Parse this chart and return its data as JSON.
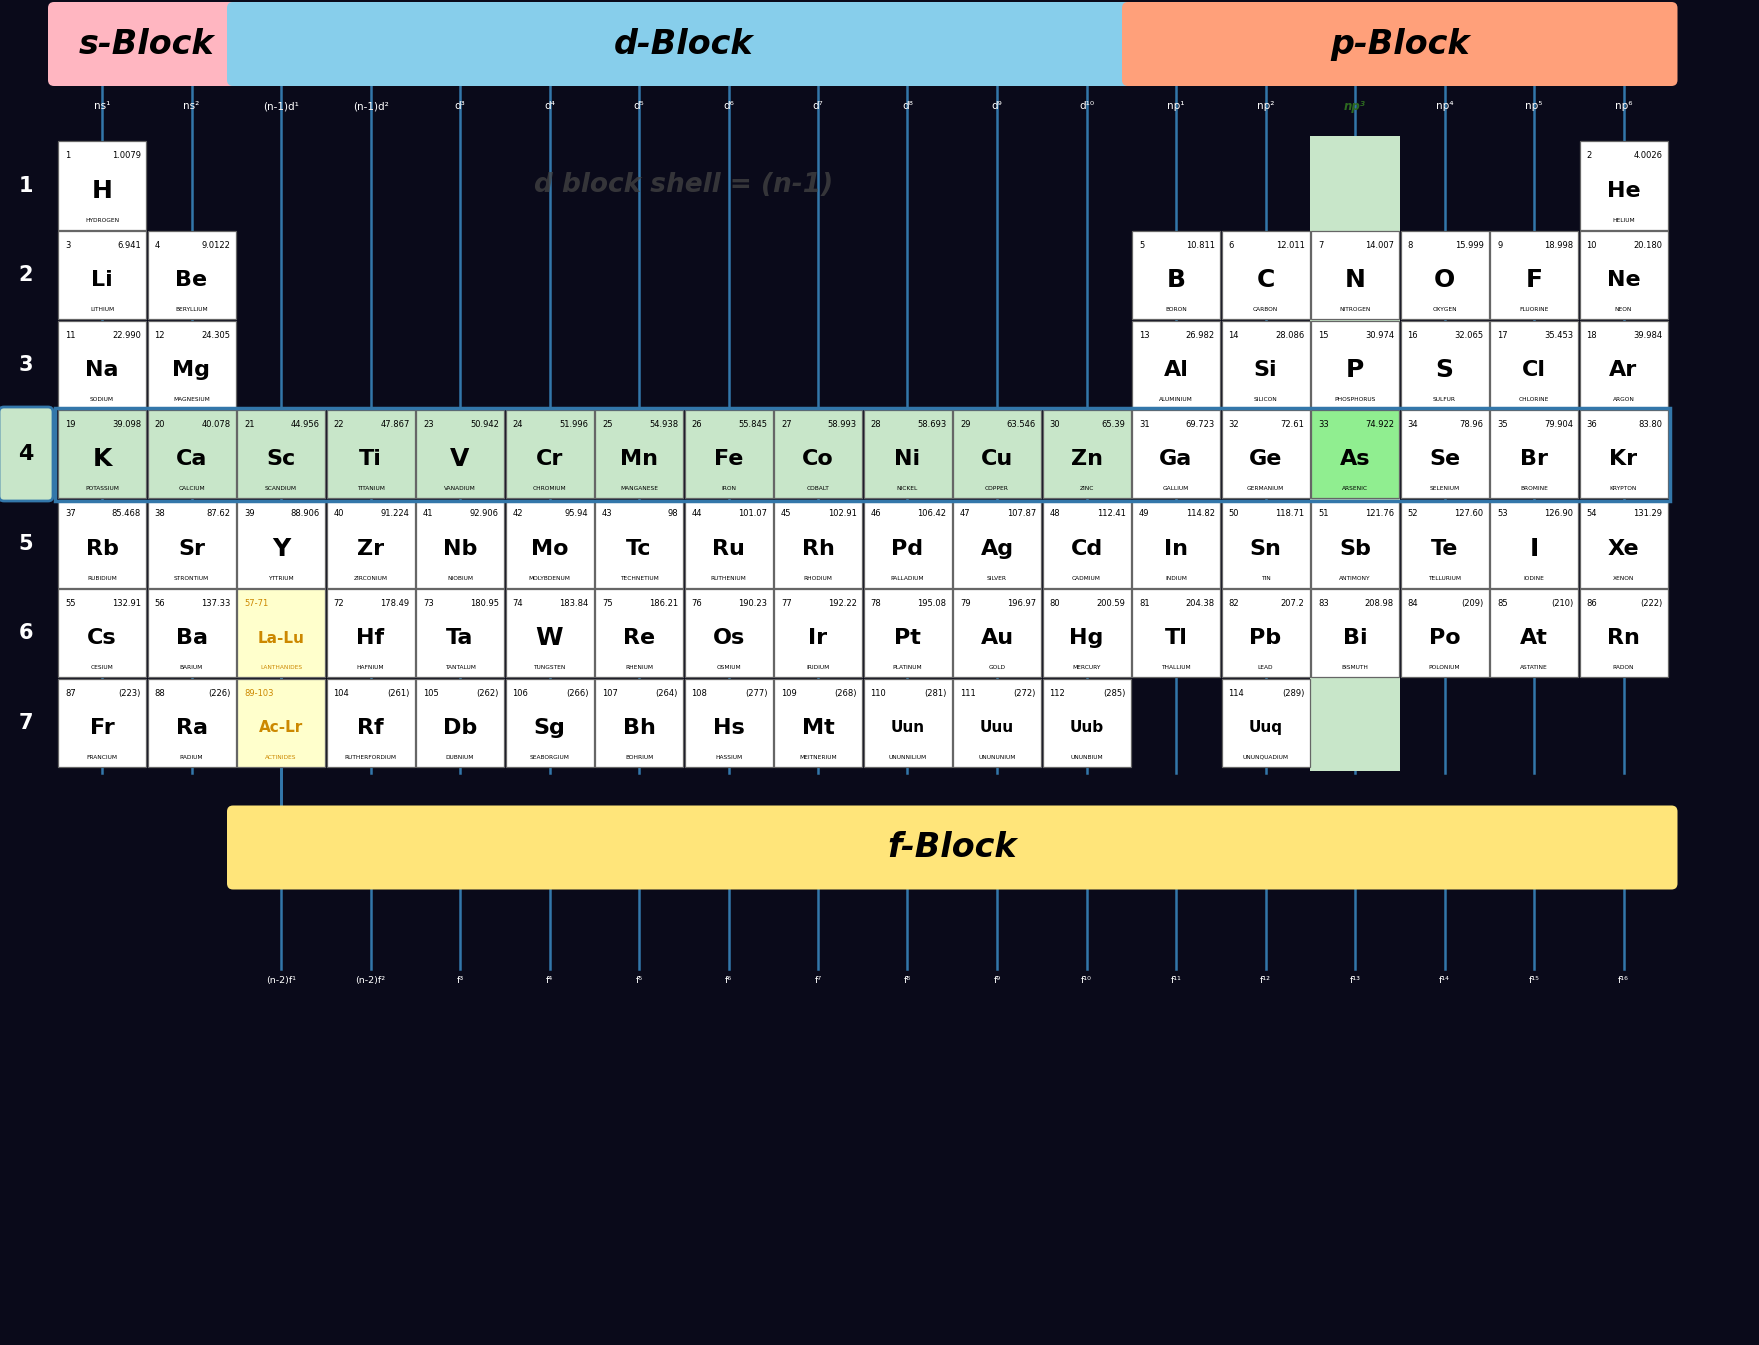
{
  "background_color": "#0a0a1a",
  "s_block_color": "#ffb6c1",
  "d_block_color": "#87CEEB",
  "p_block_color": "#FFA07A",
  "f_block_color": "#FFE57A",
  "element_default_bg": "#ffffff",
  "element_highlight_bg": "#c8e6c9",
  "element_lanthanide_bg": "#ffffcc",
  "element_actinide_bg": "#ffffcc",
  "arsenic_bg": "#90EE90",
  "np3_highlight": "#c8e6c9",
  "line_color": "#3377AA",
  "elements": [
    {
      "symbol": "H",
      "number": "1",
      "mass": "1.0079",
      "name": "HYDROGEN",
      "row": 1,
      "col": 1
    },
    {
      "symbol": "He",
      "number": "2",
      "mass": "4.0026",
      "name": "HELIUM",
      "row": 1,
      "col": 18
    },
    {
      "symbol": "Li",
      "number": "3",
      "mass": "6.941",
      "name": "LITHIUM",
      "row": 2,
      "col": 1
    },
    {
      "symbol": "Be",
      "number": "4",
      "mass": "9.0122",
      "name": "BERYLLIUM",
      "row": 2,
      "col": 2
    },
    {
      "symbol": "B",
      "number": "5",
      "mass": "10.811",
      "name": "BORON",
      "row": 2,
      "col": 13
    },
    {
      "symbol": "C",
      "number": "6",
      "mass": "12.011",
      "name": "CARBON",
      "row": 2,
      "col": 14
    },
    {
      "symbol": "N",
      "number": "7",
      "mass": "14.007",
      "name": "NITROGEN",
      "row": 2,
      "col": 15,
      "np3col": true
    },
    {
      "symbol": "O",
      "number": "8",
      "mass": "15.999",
      "name": "OXYGEN",
      "row": 2,
      "col": 16
    },
    {
      "symbol": "F",
      "number": "9",
      "mass": "18.998",
      "name": "FLUORINE",
      "row": 2,
      "col": 17
    },
    {
      "symbol": "Ne",
      "number": "10",
      "mass": "20.180",
      "name": "NEON",
      "row": 2,
      "col": 18
    },
    {
      "symbol": "Na",
      "number": "11",
      "mass": "22.990",
      "name": "SODIUM",
      "row": 3,
      "col": 1
    },
    {
      "symbol": "Mg",
      "number": "12",
      "mass": "24.305",
      "name": "MAGNESIUM",
      "row": 3,
      "col": 2
    },
    {
      "symbol": "Al",
      "number": "13",
      "mass": "26.982",
      "name": "ALUMINIUM",
      "row": 3,
      "col": 13
    },
    {
      "symbol": "Si",
      "number": "14",
      "mass": "28.086",
      "name": "SILICON",
      "row": 3,
      "col": 14
    },
    {
      "symbol": "P",
      "number": "15",
      "mass": "30.974",
      "name": "PHOSPHORUS",
      "row": 3,
      "col": 15,
      "np3col": true
    },
    {
      "symbol": "S",
      "number": "16",
      "mass": "32.065",
      "name": "SULFUR",
      "row": 3,
      "col": 16
    },
    {
      "symbol": "Cl",
      "number": "17",
      "mass": "35.453",
      "name": "CHLORINE",
      "row": 3,
      "col": 17
    },
    {
      "symbol": "Ar",
      "number": "18",
      "mass": "39.984",
      "name": "ARGON",
      "row": 3,
      "col": 18
    },
    {
      "symbol": "K",
      "number": "19",
      "mass": "39.098",
      "name": "POTASSIUM",
      "row": 4,
      "col": 1,
      "row4": true
    },
    {
      "symbol": "Ca",
      "number": "20",
      "mass": "40.078",
      "name": "CALCIUM",
      "row": 4,
      "col": 2,
      "row4": true
    },
    {
      "symbol": "Sc",
      "number": "21",
      "mass": "44.956",
      "name": "SCANDIUM",
      "row": 4,
      "col": 3,
      "row4": true
    },
    {
      "symbol": "Ti",
      "number": "22",
      "mass": "47.867",
      "name": "TITANIUM",
      "row": 4,
      "col": 4,
      "row4": true
    },
    {
      "symbol": "V",
      "number": "23",
      "mass": "50.942",
      "name": "VANADIUM",
      "row": 4,
      "col": 5,
      "row4": true
    },
    {
      "symbol": "Cr",
      "number": "24",
      "mass": "51.996",
      "name": "CHROMIUM",
      "row": 4,
      "col": 6,
      "row4": true
    },
    {
      "symbol": "Mn",
      "number": "25",
      "mass": "54.938",
      "name": "MANGANESE",
      "row": 4,
      "col": 7,
      "row4": true
    },
    {
      "symbol": "Fe",
      "number": "26",
      "mass": "55.845",
      "name": "IRON",
      "row": 4,
      "col": 8,
      "row4": true
    },
    {
      "symbol": "Co",
      "number": "27",
      "mass": "58.993",
      "name": "COBALT",
      "row": 4,
      "col": 9,
      "row4": true
    },
    {
      "symbol": "Ni",
      "number": "28",
      "mass": "58.693",
      "name": "NICKEL",
      "row": 4,
      "col": 10,
      "row4": true
    },
    {
      "symbol": "Cu",
      "number": "29",
      "mass": "63.546",
      "name": "COPPER",
      "row": 4,
      "col": 11,
      "row4": true
    },
    {
      "symbol": "Zn",
      "number": "30",
      "mass": "65.39",
      "name": "ZINC",
      "row": 4,
      "col": 12,
      "row4": true
    },
    {
      "symbol": "Ga",
      "number": "31",
      "mass": "69.723",
      "name": "GALLIUM",
      "row": 4,
      "col": 13
    },
    {
      "symbol": "Ge",
      "number": "32",
      "mass": "72.61",
      "name": "GERMANIUM",
      "row": 4,
      "col": 14
    },
    {
      "symbol": "As",
      "number": "33",
      "mass": "74.922",
      "name": "ARSENIC",
      "row": 4,
      "col": 15,
      "arsenic": true,
      "np3col": true
    },
    {
      "symbol": "Se",
      "number": "34",
      "mass": "78.96",
      "name": "SELENIUM",
      "row": 4,
      "col": 16
    },
    {
      "symbol": "Br",
      "number": "35",
      "mass": "79.904",
      "name": "BROMINE",
      "row": 4,
      "col": 17
    },
    {
      "symbol": "Kr",
      "number": "36",
      "mass": "83.80",
      "name": "KRYPTON",
      "row": 4,
      "col": 18
    },
    {
      "symbol": "Rb",
      "number": "37",
      "mass": "85.468",
      "name": "RUBIDIUM",
      "row": 5,
      "col": 1
    },
    {
      "symbol": "Sr",
      "number": "38",
      "mass": "87.62",
      "name": "STRONTIUM",
      "row": 5,
      "col": 2
    },
    {
      "symbol": "Y",
      "number": "39",
      "mass": "88.906",
      "name": "YTTRIUM",
      "row": 5,
      "col": 3
    },
    {
      "symbol": "Zr",
      "number": "40",
      "mass": "91.224",
      "name": "ZIRCONIUM",
      "row": 5,
      "col": 4
    },
    {
      "symbol": "Nb",
      "number": "41",
      "mass": "92.906",
      "name": "NIOBIUM",
      "row": 5,
      "col": 5
    },
    {
      "symbol": "Mo",
      "number": "42",
      "mass": "95.94",
      "name": "MOLYBDENUM",
      "row": 5,
      "col": 6
    },
    {
      "symbol": "Tc",
      "number": "43",
      "mass": "98",
      "name": "TECHNETIUM",
      "row": 5,
      "col": 7
    },
    {
      "symbol": "Ru",
      "number": "44",
      "mass": "101.07",
      "name": "RUTHENIUM",
      "row": 5,
      "col": 8
    },
    {
      "symbol": "Rh",
      "number": "45",
      "mass": "102.91",
      "name": "RHODIUM",
      "row": 5,
      "col": 9
    },
    {
      "symbol": "Pd",
      "number": "46",
      "mass": "106.42",
      "name": "PALLADIUM",
      "row": 5,
      "col": 10
    },
    {
      "symbol": "Ag",
      "number": "47",
      "mass": "107.87",
      "name": "SILVER",
      "row": 5,
      "col": 11
    },
    {
      "symbol": "Cd",
      "number": "48",
      "mass": "112.41",
      "name": "CADMIUM",
      "row": 5,
      "col": 12
    },
    {
      "symbol": "In",
      "number": "49",
      "mass": "114.82",
      "name": "INDIUM",
      "row": 5,
      "col": 13
    },
    {
      "symbol": "Sn",
      "number": "50",
      "mass": "118.71",
      "name": "TIN",
      "row": 5,
      "col": 14
    },
    {
      "symbol": "Sb",
      "number": "51",
      "mass": "121.76",
      "name": "ANTIMONY",
      "row": 5,
      "col": 15
    },
    {
      "symbol": "Te",
      "number": "52",
      "mass": "127.60",
      "name": "TELLURIUM",
      "row": 5,
      "col": 16
    },
    {
      "symbol": "I",
      "number": "53",
      "mass": "126.90",
      "name": "IODINE",
      "row": 5,
      "col": 17
    },
    {
      "symbol": "Xe",
      "number": "54",
      "mass": "131.29",
      "name": "XENON",
      "row": 5,
      "col": 18
    },
    {
      "symbol": "Cs",
      "number": "55",
      "mass": "132.91",
      "name": "CESIUM",
      "row": 6,
      "col": 1
    },
    {
      "symbol": "Ba",
      "number": "56",
      "mass": "137.33",
      "name": "BARIUM",
      "row": 6,
      "col": 2
    },
    {
      "symbol": "La-Lu",
      "number": "57-71",
      "mass": "",
      "name": "LANTHANIDES",
      "row": 6,
      "col": 3,
      "lanthanide": true
    },
    {
      "symbol": "Hf",
      "number": "72",
      "mass": "178.49",
      "name": "HAFNIUM",
      "row": 6,
      "col": 4
    },
    {
      "symbol": "Ta",
      "number": "73",
      "mass": "180.95",
      "name": "TANTALUM",
      "row": 6,
      "col": 5
    },
    {
      "symbol": "W",
      "number": "74",
      "mass": "183.84",
      "name": "TUNGSTEN",
      "row": 6,
      "col": 6
    },
    {
      "symbol": "Re",
      "number": "75",
      "mass": "186.21",
      "name": "RHENIUM",
      "row": 6,
      "col": 7
    },
    {
      "symbol": "Os",
      "number": "76",
      "mass": "190.23",
      "name": "OSMIUM",
      "row": 6,
      "col": 8
    },
    {
      "symbol": "Ir",
      "number": "77",
      "mass": "192.22",
      "name": "IRIDIUM",
      "row": 6,
      "col": 9
    },
    {
      "symbol": "Pt",
      "number": "78",
      "mass": "195.08",
      "name": "PLATINUM",
      "row": 6,
      "col": 10
    },
    {
      "symbol": "Au",
      "number": "79",
      "mass": "196.97",
      "name": "GOLD",
      "row": 6,
      "col": 11
    },
    {
      "symbol": "Hg",
      "number": "80",
      "mass": "200.59",
      "name": "MERCURY",
      "row": 6,
      "col": 12
    },
    {
      "symbol": "Tl",
      "number": "81",
      "mass": "204.38",
      "name": "THALLIUM",
      "row": 6,
      "col": 13
    },
    {
      "symbol": "Pb",
      "number": "82",
      "mass": "207.2",
      "name": "LEAD",
      "row": 6,
      "col": 14
    },
    {
      "symbol": "Bi",
      "number": "83",
      "mass": "208.98",
      "name": "BISMUTH",
      "row": 6,
      "col": 15
    },
    {
      "symbol": "Po",
      "number": "84",
      "mass": "(209)",
      "name": "POLONIUM",
      "row": 6,
      "col": 16
    },
    {
      "symbol": "At",
      "number": "85",
      "mass": "(210)",
      "name": "ASTATINE",
      "row": 6,
      "col": 17
    },
    {
      "symbol": "Rn",
      "number": "86",
      "mass": "(222)",
      "name": "RADON",
      "row": 6,
      "col": 18
    },
    {
      "symbol": "Fr",
      "number": "87",
      "mass": "(223)",
      "name": "FRANCIUM",
      "row": 7,
      "col": 1
    },
    {
      "symbol": "Ra",
      "number": "88",
      "mass": "(226)",
      "name": "RADIUM",
      "row": 7,
      "col": 2
    },
    {
      "symbol": "Ac-Lr",
      "number": "89-103",
      "mass": "",
      "name": "ACTINIDES",
      "row": 7,
      "col": 3,
      "actinide": true
    },
    {
      "symbol": "Rf",
      "number": "104",
      "mass": "(261)",
      "name": "RUTHERFORDIUM",
      "row": 7,
      "col": 4
    },
    {
      "symbol": "Db",
      "number": "105",
      "mass": "(262)",
      "name": "DUBNIUM",
      "row": 7,
      "col": 5
    },
    {
      "symbol": "Sg",
      "number": "106",
      "mass": "(266)",
      "name": "SEABORGIUM",
      "row": 7,
      "col": 6
    },
    {
      "symbol": "Bh",
      "number": "107",
      "mass": "(264)",
      "name": "BOHRIUM",
      "row": 7,
      "col": 7
    },
    {
      "symbol": "Hs",
      "number": "108",
      "mass": "(277)",
      "name": "HASSIUM",
      "row": 7,
      "col": 8
    },
    {
      "symbol": "Mt",
      "number": "109",
      "mass": "(268)",
      "name": "MEITNERIUM",
      "row": 7,
      "col": 9
    },
    {
      "symbol": "Uun",
      "number": "110",
      "mass": "(281)",
      "name": "UNUNNILIUM",
      "row": 7,
      "col": 10
    },
    {
      "symbol": "Uuu",
      "number": "111",
      "mass": "(272)",
      "name": "UNUNUNIUM",
      "row": 7,
      "col": 11
    },
    {
      "symbol": "Uub",
      "number": "112",
      "mass": "(285)",
      "name": "UNUNBIUM",
      "row": 7,
      "col": 12
    },
    {
      "symbol": "Uuq",
      "number": "114",
      "mass": "(289)",
      "name": "UNUNQUADIUM",
      "row": 7,
      "col": 14
    }
  ]
}
